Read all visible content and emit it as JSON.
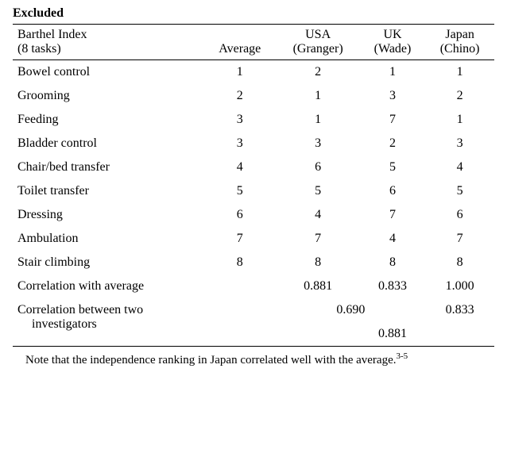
{
  "header_label": "Excluded",
  "columns": {
    "col0_line1": "Barthel Index",
    "col0_line2": "(8 tasks)",
    "col1": "Average",
    "col2_line1": "USA",
    "col2_line2": "(Granger)",
    "col3_line1": "UK",
    "col3_line2": "(Wade)",
    "col4_line1": "Japan",
    "col4_line2": "(Chino)"
  },
  "rows": [
    {
      "label": "Bowel control",
      "avg": "1",
      "usa": "2",
      "uk": "1",
      "jp": "1"
    },
    {
      "label": "Grooming",
      "avg": "2",
      "usa": "1",
      "uk": "3",
      "jp": "2"
    },
    {
      "label": "Feeding",
      "avg": "3",
      "usa": "1",
      "uk": "7",
      "jp": "1"
    },
    {
      "label": "Bladder control",
      "avg": "3",
      "usa": "3",
      "uk": "2",
      "jp": "3"
    },
    {
      "label": "Chair/bed transfer",
      "avg": "4",
      "usa": "6",
      "uk": "5",
      "jp": "4"
    },
    {
      "label": "Toilet transfer",
      "avg": "5",
      "usa": "5",
      "uk": "6",
      "jp": "5"
    },
    {
      "label": "Dressing",
      "avg": "6",
      "usa": "4",
      "uk": "7",
      "jp": "6"
    },
    {
      "label": "Ambulation",
      "avg": "7",
      "usa": "7",
      "uk": "4",
      "jp": "7"
    },
    {
      "label": "Stair climbing",
      "avg": "8",
      "usa": "8",
      "uk": "8",
      "jp": "8"
    }
  ],
  "corr_avg": {
    "label": "Correlation with average",
    "usa": "0.881",
    "uk": "0.833",
    "jp": "1.000"
  },
  "corr_between": {
    "label_line1": "Correlation between two",
    "label_line2": "investigators",
    "val_mid": "0.690",
    "val_right": "0.833",
    "val_below": "0.881"
  },
  "footnote_text": "Note that the independence ranking in Japan correlated well with the average.",
  "footnote_sup": "3-5"
}
